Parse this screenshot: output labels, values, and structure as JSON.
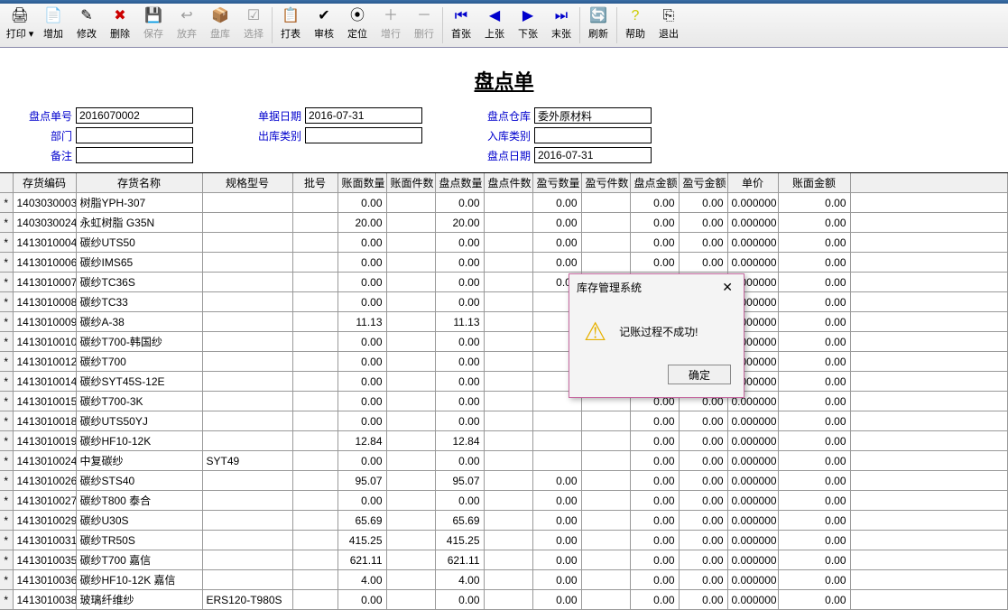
{
  "toolbar": [
    {
      "id": "print",
      "label": "打印",
      "icon": "🖨",
      "enabled": true,
      "dd": true
    },
    {
      "id": "add",
      "label": "增加",
      "icon": "📄",
      "enabled": true
    },
    {
      "id": "edit",
      "label": "修改",
      "icon": "✎",
      "enabled": true
    },
    {
      "id": "delete",
      "label": "删除",
      "icon": "✖",
      "enabled": true,
      "color": "#c00"
    },
    {
      "id": "save",
      "label": "保存",
      "icon": "💾",
      "enabled": false
    },
    {
      "id": "cancel",
      "label": "放弃",
      "icon": "↩",
      "enabled": false
    },
    {
      "id": "stock",
      "label": "盘库",
      "icon": "📦",
      "enabled": false
    },
    {
      "id": "select",
      "label": "选择",
      "icon": "☑",
      "enabled": false
    },
    {
      "sep": true
    },
    {
      "id": "list",
      "label": "打表",
      "icon": "📋",
      "enabled": true
    },
    {
      "id": "audit",
      "label": "审核",
      "icon": "✔",
      "enabled": true
    },
    {
      "id": "locate",
      "label": "定位",
      "icon": "⦿",
      "enabled": true
    },
    {
      "id": "addrow",
      "label": "增行",
      "icon": "＋",
      "enabled": false
    },
    {
      "id": "delrow",
      "label": "删行",
      "icon": "－",
      "enabled": false
    },
    {
      "sep": true
    },
    {
      "id": "first",
      "label": "首张",
      "icon": "⏮",
      "enabled": true,
      "color": "#00c"
    },
    {
      "id": "prev",
      "label": "上张",
      "icon": "◀",
      "enabled": true,
      "color": "#00c"
    },
    {
      "id": "next",
      "label": "下张",
      "icon": "▶",
      "enabled": true,
      "color": "#00c"
    },
    {
      "id": "last",
      "label": "末张",
      "icon": "⏭",
      "enabled": true,
      "color": "#00c"
    },
    {
      "sep": true
    },
    {
      "id": "refresh",
      "label": "刷新",
      "icon": "🔄",
      "enabled": true
    },
    {
      "sep": true
    },
    {
      "id": "help",
      "label": "帮助",
      "icon": "?",
      "enabled": true,
      "color": "#cc0"
    },
    {
      "id": "exit",
      "label": "退出",
      "icon": "⎘",
      "enabled": true
    }
  ],
  "page_title": "盘点单",
  "form": {
    "no_label": "盘点单号",
    "no": "2016070002",
    "dept_label": "部门",
    "dept": "",
    "remark_label": "备注",
    "remark": "",
    "billdate_label": "单据日期",
    "billdate": "2016-07-31",
    "outtype_label": "出库类别",
    "outtype": "",
    "wh_label": "盘点仓库",
    "wh": "委外原材料",
    "intype_label": "入库类别",
    "intype": "",
    "chkdate_label": "盘点日期",
    "chkdate": "2016-07-31"
  },
  "columns": [
    "存货编码",
    "存货名称",
    "规格型号",
    "批号",
    "账面数量",
    "账面件数",
    "盘点数量",
    "盘点件数",
    "盈亏数量",
    "盈亏件数",
    "盘点金额",
    "盈亏金额",
    "单价",
    "账面金额"
  ],
  "rows": [
    {
      "code": "1403030003",
      "name": "树脂YPH-307",
      "spec": "",
      "batch": "",
      "bq": "0.00",
      "cq": "0.00",
      "dq": "0.00",
      "pa": "0.00",
      "da": "0.00",
      "pr": "0.000000",
      "ba": "0.00"
    },
    {
      "code": "1403030024",
      "name": "永虹树脂 G35N",
      "spec": "",
      "batch": "",
      "bq": "20.00",
      "cq": "20.00",
      "dq": "0.00",
      "pa": "0.00",
      "da": "0.00",
      "pr": "0.000000",
      "ba": "0.00"
    },
    {
      "code": "1413010004",
      "name": "碳纱UTS50",
      "spec": "",
      "batch": "",
      "bq": "0.00",
      "cq": "0.00",
      "dq": "0.00",
      "pa": "0.00",
      "da": "0.00",
      "pr": "0.000000",
      "ba": "0.00"
    },
    {
      "code": "1413010006",
      "name": "碳纱IMS65",
      "spec": "",
      "batch": "",
      "bq": "0.00",
      "cq": "0.00",
      "dq": "0.00",
      "pa": "0.00",
      "da": "0.00",
      "pr": "0.000000",
      "ba": "0.00"
    },
    {
      "code": "1413010007",
      "name": "碳纱TC36S",
      "spec": "",
      "batch": "",
      "bq": "0.00",
      "cq": "0.00",
      "dq": "0.00",
      "pa": "0.00",
      "da": "0.00",
      "pr": "0.000000",
      "ba": "0.00"
    },
    {
      "code": "1413010008",
      "name": "碳纱TC33",
      "spec": "",
      "batch": "",
      "bq": "0.00",
      "cq": "0.00",
      "dq": "",
      "pa": "0.00",
      "da": "0.00",
      "pr": "0.000000",
      "ba": "0.00"
    },
    {
      "code": "1413010009",
      "name": "碳纱A-38",
      "spec": "",
      "batch": "",
      "bq": "11.13",
      "cq": "11.13",
      "dq": "",
      "pa": "0.00",
      "da": "0.00",
      "pr": "0.000000",
      "ba": "0.00"
    },
    {
      "code": "1413010010",
      "name": "碳纱T700-韩国纱",
      "spec": "",
      "batch": "",
      "bq": "0.00",
      "cq": "0.00",
      "dq": "",
      "pa": "0.00",
      "da": "0.00",
      "pr": "0.000000",
      "ba": "0.00"
    },
    {
      "code": "1413010012",
      "name": "碳纱T700",
      "spec": "",
      "batch": "",
      "bq": "0.00",
      "cq": "0.00",
      "dq": "",
      "pa": "0.00",
      "da": "0.00",
      "pr": "0.000000",
      "ba": "0.00"
    },
    {
      "code": "1413010014",
      "name": "碳纱SYT45S-12E",
      "spec": "",
      "batch": "",
      "bq": "0.00",
      "cq": "0.00",
      "dq": "",
      "pa": "0.00",
      "da": "0.00",
      "pr": "0.000000",
      "ba": "0.00"
    },
    {
      "code": "1413010015",
      "name": "碳纱T700-3K",
      "spec": "",
      "batch": "",
      "bq": "0.00",
      "cq": "0.00",
      "dq": "",
      "pa": "0.00",
      "da": "0.00",
      "pr": "0.000000",
      "ba": "0.00"
    },
    {
      "code": "1413010018",
      "name": "碳纱UTS50YJ",
      "spec": "",
      "batch": "",
      "bq": "0.00",
      "cq": "0.00",
      "dq": "",
      "pa": "0.00",
      "da": "0.00",
      "pr": "0.000000",
      "ba": "0.00"
    },
    {
      "code": "1413010019",
      "name": "碳纱HF10-12K",
      "spec": "",
      "batch": "",
      "bq": "12.84",
      "cq": "12.84",
      "dq": "",
      "pa": "0.00",
      "da": "0.00",
      "pr": "0.000000",
      "ba": "0.00"
    },
    {
      "code": "1413010024",
      "name": "中复碳纱",
      "spec": "SYT49",
      "batch": "",
      "bq": "0.00",
      "cq": "0.00",
      "dq": "",
      "pa": "0.00",
      "da": "0.00",
      "pr": "0.000000",
      "ba": "0.00"
    },
    {
      "code": "1413010026",
      "name": "碳纱STS40",
      "spec": "",
      "batch": "",
      "bq": "95.07",
      "cq": "95.07",
      "dq": "0.00",
      "pa": "0.00",
      "da": "0.00",
      "pr": "0.000000",
      "ba": "0.00"
    },
    {
      "code": "1413010027",
      "name": "碳纱T800 泰合",
      "spec": "",
      "batch": "",
      "bq": "0.00",
      "cq": "0.00",
      "dq": "0.00",
      "pa": "0.00",
      "da": "0.00",
      "pr": "0.000000",
      "ba": "0.00"
    },
    {
      "code": "1413010029",
      "name": "碳纱U30S",
      "spec": "",
      "batch": "",
      "bq": "65.69",
      "cq": "65.69",
      "dq": "0.00",
      "pa": "0.00",
      "da": "0.00",
      "pr": "0.000000",
      "ba": "0.00"
    },
    {
      "code": "1413010031",
      "name": "碳纱TR50S",
      "spec": "",
      "batch": "",
      "bq": "415.25",
      "cq": "415.25",
      "dq": "0.00",
      "pa": "0.00",
      "da": "0.00",
      "pr": "0.000000",
      "ba": "0.00"
    },
    {
      "code": "1413010035",
      "name": "碳纱T700   嘉信",
      "spec": "",
      "batch": "",
      "bq": "621.11",
      "cq": "621.11",
      "dq": "0.00",
      "pa": "0.00",
      "da": "0.00",
      "pr": "0.000000",
      "ba": "0.00"
    },
    {
      "code": "1413010036",
      "name": "碳纱HF10-12K  嘉信",
      "spec": "",
      "batch": "",
      "bq": "4.00",
      "cq": "4.00",
      "dq": "0.00",
      "pa": "0.00",
      "da": "0.00",
      "pr": "0.000000",
      "ba": "0.00"
    },
    {
      "code": "1413010038",
      "name": "玻璃纤维纱",
      "spec": "ERS120-T980S",
      "batch": "",
      "bq": "0.00",
      "cq": "0.00",
      "dq": "0.00",
      "pa": "0.00",
      "da": "0.00",
      "pr": "0.000000",
      "ba": "0.00"
    }
  ],
  "dialog": {
    "title": "库存管理系统",
    "message": "记账过程不成功!",
    "ok": "确定"
  }
}
